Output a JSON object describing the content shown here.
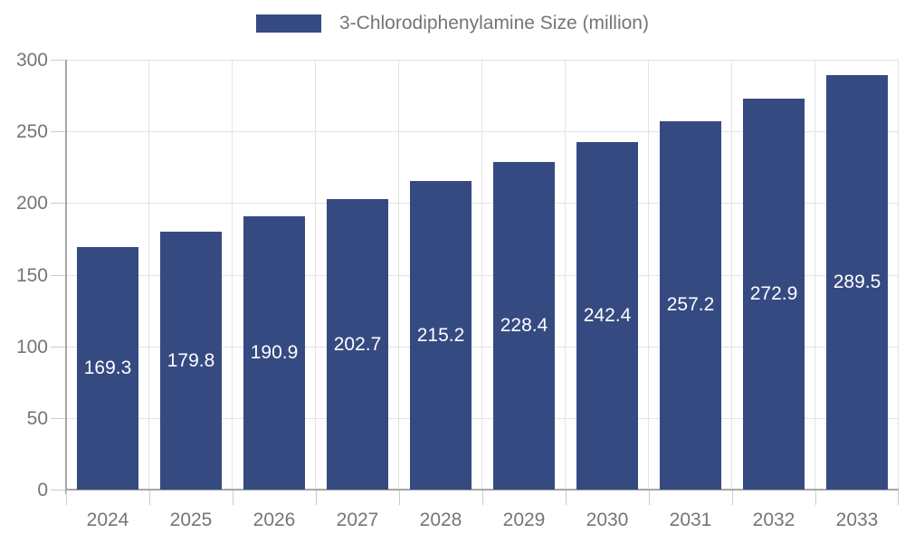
{
  "legend": {
    "label": "3-Chlorodiphenylamine Size (million)"
  },
  "colors": {
    "bar": "#364a82",
    "axis_line": "#a6a6a6",
    "tick_line": "#cccccc",
    "gridline": "#e3e3e3",
    "axis_label_text": "#757575",
    "legend_text": "#757575",
    "value_label_text": "#ffffff",
    "background": "#ffffff"
  },
  "chart_data": {
    "type": "bar",
    "title": "3-Chlorodiphenylamine Size (million)",
    "series_name": "3-Chlorodiphenylamine Size (million)",
    "categories": [
      "2024",
      "2025",
      "2026",
      "2027",
      "2028",
      "2029",
      "2030",
      "2031",
      "2032",
      "2033"
    ],
    "values": [
      169.3,
      179.8,
      190.9,
      202.7,
      215.2,
      228.4,
      242.4,
      257.2,
      272.9,
      289.5
    ],
    "value_labels": [
      "169.3",
      "179.8",
      "190.9",
      "202.7",
      "215.2",
      "228.4",
      "242.4",
      "257.2",
      "272.9",
      "289.5"
    ],
    "xlabel": "",
    "ylabel": "",
    "ylim": [
      0,
      300
    ],
    "yticks": [
      0,
      50,
      100,
      150,
      200,
      250,
      300
    ],
    "ytick_labels": [
      "0",
      "50",
      "100",
      "150",
      "200",
      "250",
      "300"
    ],
    "grid": true,
    "legend_position": "top",
    "value_label_position": "inside-center"
  }
}
